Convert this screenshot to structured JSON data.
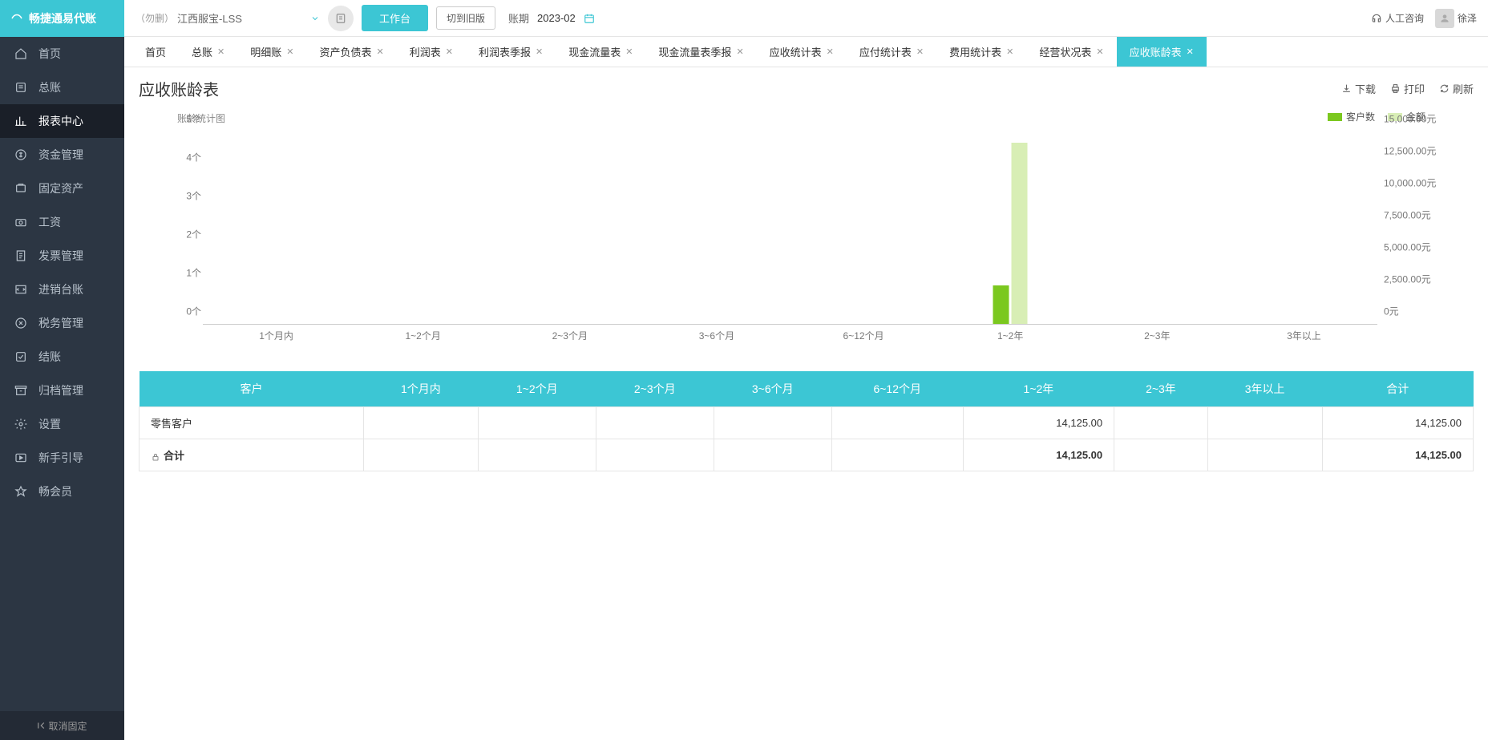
{
  "brand": "畅捷通易代账",
  "topbar": {
    "org_prefix": "（勿删）",
    "org_name": "江西服宝-LSS",
    "workbench_btn": "工作台",
    "switch_old_btn": "切到旧版",
    "period_label": "账期",
    "period_value": "2023-02",
    "support": "人工咨询",
    "user_name": "徐泽"
  },
  "sidebar": {
    "items": [
      {
        "label": "首页",
        "icon": "home"
      },
      {
        "label": "总账",
        "icon": "ledger"
      },
      {
        "label": "报表中心",
        "icon": "chart",
        "active": true
      },
      {
        "label": "资金管理",
        "icon": "money"
      },
      {
        "label": "固定资产",
        "icon": "asset"
      },
      {
        "label": "工资",
        "icon": "salary"
      },
      {
        "label": "发票管理",
        "icon": "invoice"
      },
      {
        "label": "进销台账",
        "icon": "inout"
      },
      {
        "label": "税务管理",
        "icon": "tax"
      },
      {
        "label": "结账",
        "icon": "close"
      },
      {
        "label": "归档管理",
        "icon": "archive"
      },
      {
        "label": "设置",
        "icon": "gear"
      },
      {
        "label": "新手引导",
        "icon": "play"
      },
      {
        "label": "畅会员",
        "icon": "vip"
      }
    ],
    "footer": "取消固定"
  },
  "tabs": [
    {
      "label": "首页",
      "closable": false
    },
    {
      "label": "总账",
      "closable": true
    },
    {
      "label": "明细账",
      "closable": true
    },
    {
      "label": "资产负债表",
      "closable": true
    },
    {
      "label": "利润表",
      "closable": true
    },
    {
      "label": "利润表季报",
      "closable": true
    },
    {
      "label": "现金流量表",
      "closable": true
    },
    {
      "label": "现金流量表季报",
      "closable": true
    },
    {
      "label": "应收统计表",
      "closable": true
    },
    {
      "label": "应付统计表",
      "closable": true
    },
    {
      "label": "费用统计表",
      "closable": true
    },
    {
      "label": "经营状况表",
      "closable": true
    },
    {
      "label": "应收账龄表",
      "closable": true,
      "active": true
    }
  ],
  "page": {
    "title": "应收账龄表",
    "actions": {
      "download": "下载",
      "print": "打印",
      "refresh": "刷新"
    }
  },
  "chart": {
    "title": "账龄统计图",
    "legend": [
      {
        "label": "客户数",
        "color": "#7bc81f"
      },
      {
        "label": "金额",
        "color": "#d8eeb5"
      }
    ],
    "categories": [
      "1个月内",
      "1~2个月",
      "2~3个月",
      "3~6个月",
      "6~12个月",
      "1~2年",
      "2~3年",
      "3年以上"
    ],
    "left_axis": {
      "ticks": [
        "0个",
        "1个",
        "2个",
        "3个",
        "4个",
        "5个"
      ],
      "max": 5
    },
    "right_axis": {
      "ticks": [
        "0元",
        "2,500.00元",
        "5,000.00元",
        "7,500.00元",
        "10,000.00元",
        "12,500.00元",
        "15,000.00元"
      ],
      "max": 15000
    },
    "series_customers": [
      0,
      0,
      0,
      0,
      0,
      1,
      0,
      0
    ],
    "series_amount": [
      0,
      0,
      0,
      0,
      0,
      14125,
      0,
      0
    ],
    "bar_colors": {
      "customers": "#7bc81f",
      "amount": "#d8eeb5"
    }
  },
  "table": {
    "columns": [
      "客户",
      "1个月内",
      "1~2个月",
      "2~3个月",
      "3~6个月",
      "6~12个月",
      "1~2年",
      "2~3年",
      "3年以上",
      "合计"
    ],
    "rows": [
      {
        "cells": [
          "零售客户",
          "",
          "",
          "",
          "",
          "",
          "14,125.00",
          "",
          "",
          "14,125.00"
        ]
      }
    ],
    "total": {
      "label": "合计",
      "cells": [
        "",
        "",
        "",
        "",
        "",
        "14,125.00",
        "",
        "",
        "14,125.00"
      ]
    }
  }
}
